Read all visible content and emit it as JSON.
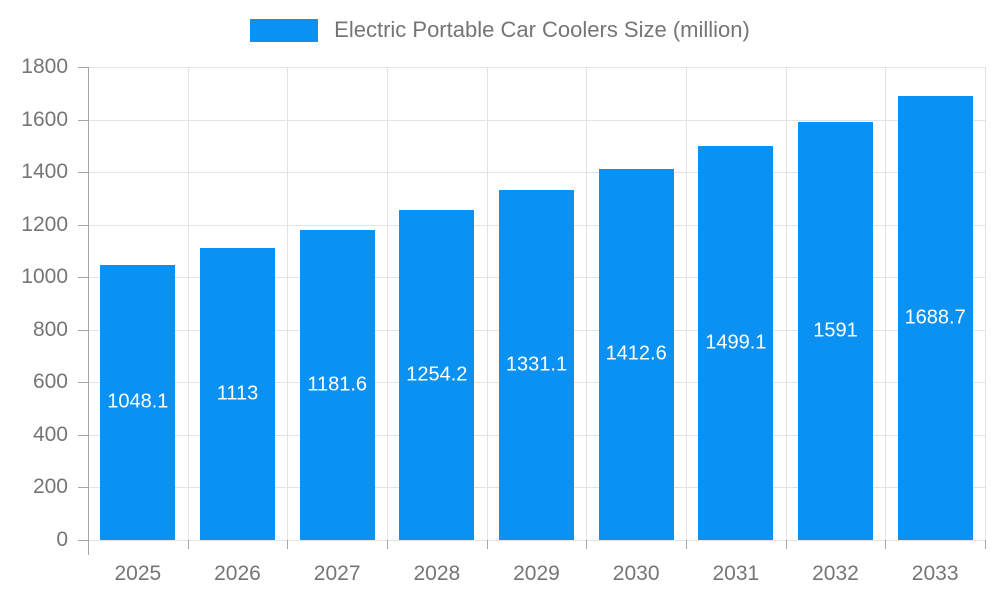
{
  "colors": {
    "bar": "#0A91F2",
    "grid": "#E3E3E3",
    "axis": "#A6A6A6",
    "text": "#757575",
    "bar_label": "#FFFFFF",
    "background": "#FFFFFF"
  },
  "legend": {
    "label": "Electric Portable Car Coolers Size (million)",
    "swatch_color": "#0A91F2",
    "position": "top"
  },
  "chart_data": {
    "type": "bar",
    "title": "Electric Portable Car Coolers Size (million)",
    "categories": [
      "2025",
      "2026",
      "2027",
      "2028",
      "2029",
      "2030",
      "2031",
      "2032",
      "2033"
    ],
    "values": [
      1048.1,
      1113,
      1181.6,
      1254.2,
      1331.1,
      1412.6,
      1499.1,
      1591,
      1688.7
    ],
    "value_labels": [
      "1048.1",
      "1113",
      "1181.6",
      "1254.2",
      "1331.1",
      "1412.6",
      "1499.1",
      "1591",
      "1688.7"
    ],
    "xlabel": "",
    "ylabel": "",
    "ylim": [
      0,
      1800
    ],
    "yticks": [
      0,
      200,
      400,
      600,
      800,
      1000,
      1200,
      1400,
      1600,
      1800
    ],
    "grid": true,
    "legend_position": "top",
    "bar_label_position": "center-inside"
  }
}
